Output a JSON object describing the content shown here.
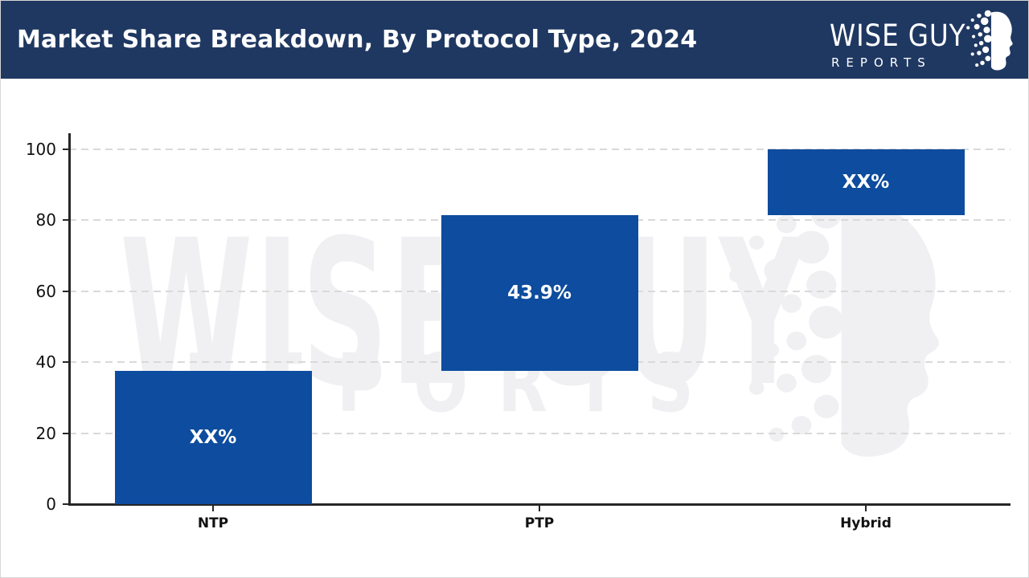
{
  "header": {
    "title": "Market Share Breakdown, By Protocol Type, 2024",
    "bg_color": "#1f3862",
    "logo": {
      "line1": "WISE GUY",
      "line2": "REPORTS"
    }
  },
  "watermark": {
    "line1": "WISE GUY",
    "line2": "REPORTS",
    "color": "#f0f0f3"
  },
  "chart_data": {
    "type": "bar",
    "variant": "waterfall",
    "title": "Market Share Breakdown, By Protocol Type, 2024",
    "categories": [
      "NTP",
      "PTP",
      "Hybrid"
    ],
    "segments": [
      {
        "category": "NTP",
        "start": 0,
        "end": 37.5,
        "label": "XX%"
      },
      {
        "category": "PTP",
        "start": 37.5,
        "end": 81.4,
        "label": "43.9%"
      },
      {
        "category": "Hybrid",
        "start": 81.4,
        "end": 100,
        "label": "XX%"
      }
    ],
    "yticks": [
      "0",
      "20",
      "40",
      "60",
      "80",
      "100"
    ],
    "ytick_values": [
      0,
      20,
      40,
      60,
      80,
      100
    ],
    "ylim": [
      0,
      105
    ],
    "xlabel": "",
    "ylabel": "",
    "bar_color": "#0d4c9e",
    "bar_label_color": "#ffffff",
    "grid": {
      "axis": "y",
      "style": "dashed",
      "color": "#d9d9d9"
    },
    "legend": null
  }
}
